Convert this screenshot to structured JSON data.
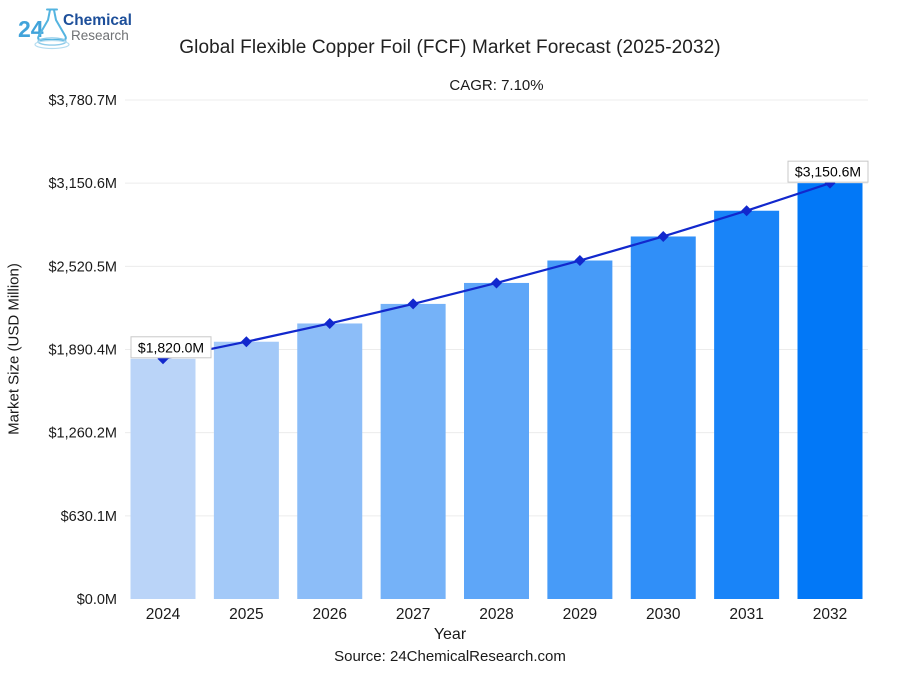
{
  "logo": {
    "number": "24",
    "line1": "Chemical",
    "line2": "Research",
    "accent_color": "#41a3da",
    "name_color": "#1d4f9a",
    "sub_color": "#6f7174"
  },
  "header": {
    "title": "Global Flexible Copper Foil (FCF) Market Forecast (2025-2032)",
    "subtitle": "CAGR: 7.10%"
  },
  "chart_data": {
    "type": "bar",
    "overlay_line": true,
    "title": "Global Flexible Copper Foil (FCF) Market Forecast (2025-2032)",
    "subtitle": "CAGR: 7.10%",
    "cagr_percent": 7.1,
    "xlabel": "Year",
    "ylabel": "Market Size (USD Million)",
    "categories": [
      "2024",
      "2025",
      "2026",
      "2027",
      "2028",
      "2029",
      "2030",
      "2031",
      "2032"
    ],
    "values": [
      1820.0,
      1949.2,
      2087.6,
      2235.8,
      2394.6,
      2564.6,
      2746.7,
      2941.7,
      3150.6
    ],
    "ylim": [
      0,
      3780.7
    ],
    "yticks": [
      {
        "value": 0,
        "label": "$0.0M"
      },
      {
        "value": 630.1,
        "label": "$630.1M"
      },
      {
        "value": 1260.2,
        "label": "$1,260.2M"
      },
      {
        "value": 1890.4,
        "label": "$1,890.4M"
      },
      {
        "value": 2520.5,
        "label": "$2,520.5M"
      },
      {
        "value": 3150.6,
        "label": "$3,150.6M"
      },
      {
        "value": 3780.7,
        "label": "$3,780.7M"
      }
    ],
    "grid": true,
    "legend": false,
    "bar_colors": [
      "#bad4f8",
      "#a3c9f8",
      "#8cbdf8",
      "#75b2f8",
      "#5ea6f8",
      "#479bf8",
      "#308ff8",
      "#1984f8",
      "#0278f7"
    ],
    "line_color": "#1228cd",
    "annotations": [
      {
        "category": "2024",
        "label": "$1,820.0M"
      },
      {
        "category": "2032",
        "label": "$3,150.6M"
      }
    ]
  },
  "footer": {
    "source": "Source: 24ChemicalResearch.com"
  }
}
